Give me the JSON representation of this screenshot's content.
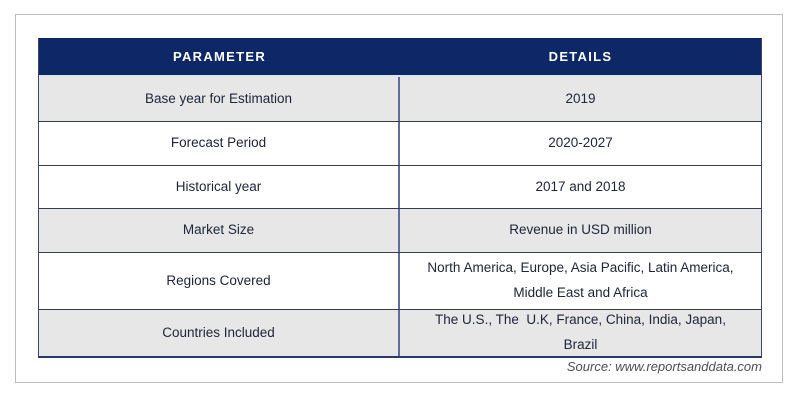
{
  "chart_data": {
    "type": "table",
    "columns": [
      "PARAMETER",
      "DETAILS"
    ],
    "rows": [
      {
        "parameter": "Base year for Estimation",
        "details": "2019",
        "shaded": true
      },
      {
        "parameter": "Forecast Period",
        "details": "2020-2027",
        "shaded": false
      },
      {
        "parameter": "Historical year",
        "details": "2017 and 2018",
        "shaded": false
      },
      {
        "parameter": "Market Size",
        "details": "Revenue in USD million",
        "shaded": true
      },
      {
        "parameter": "Regions Covered",
        "details": "North America, Europe, Asia Pacific, Latin America, Middle East and Africa",
        "shaded": false
      },
      {
        "parameter": "Countries Included",
        "details": "The U.S., The  U.K, France, China, India, Japan, Brazil",
        "shaded": true
      }
    ],
    "layout_hints": {
      "header_position": "top",
      "column_split": "50/50",
      "shaded_rows": [
        1,
        4,
        6
      ]
    }
  },
  "footer": {
    "source": "Source: www.reportsanddata.com"
  },
  "colors": {
    "header_bg": "#0e2766",
    "header_text": "#ffffff",
    "shaded_row_bg": "#e7e7e7",
    "row_bg": "#ffffff",
    "body_text": "#20263a",
    "row_border": "#363c4e",
    "column_divider": "#5f6d9b",
    "table_outline": "#2c3a6b",
    "card_border": "#bdbdbd",
    "source_text": "#4f4f4f"
  }
}
